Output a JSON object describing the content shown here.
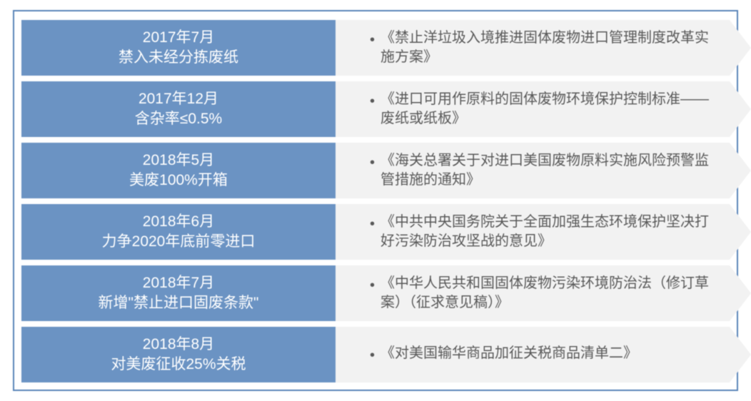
{
  "diagram": {
    "type": "flowchart",
    "border_color": "#5a84b8",
    "left_arrow_bg": "#6b93c3",
    "left_text_color": "#ffffff",
    "right_bg": "#f2f2f2",
    "right_text_color": "#595959",
    "left_fontsize": 21,
    "right_fontsize": 20,
    "rows": [
      {
        "date": "2017年7月",
        "subtitle": "禁入未经分拣废纸",
        "policy": "《禁止洋垃圾入境推进固体废物进口管理制度改革实施方案》"
      },
      {
        "date": "2017年12月",
        "subtitle": "含杂率≤0.5%",
        "policy": "《进口可用作原料的固体废物环境保护控制标准——废纸或纸板》"
      },
      {
        "date": "2018年5月",
        "subtitle": "美废100%开箱",
        "policy": "《海关总署关于对进口美国废物原料实施风险预警监管措施的通知》"
      },
      {
        "date": "2018年6月",
        "subtitle": "力争2020年底前零进口",
        "policy": "《中共中央国务院关于全面加强生态环境保护坚决打好污染防治攻坚战的意见》"
      },
      {
        "date": "2018年7月",
        "subtitle": "新增\"禁止进口固废条款\"",
        "policy": "《中华人民共和国固体废物污染环境防治法（修订草案）（征求意见稿）》"
      },
      {
        "date": "2018年8月",
        "subtitle": "对美废征收25%关税",
        "policy": "《对美国输华商品加征关税商品清单二》"
      }
    ]
  }
}
